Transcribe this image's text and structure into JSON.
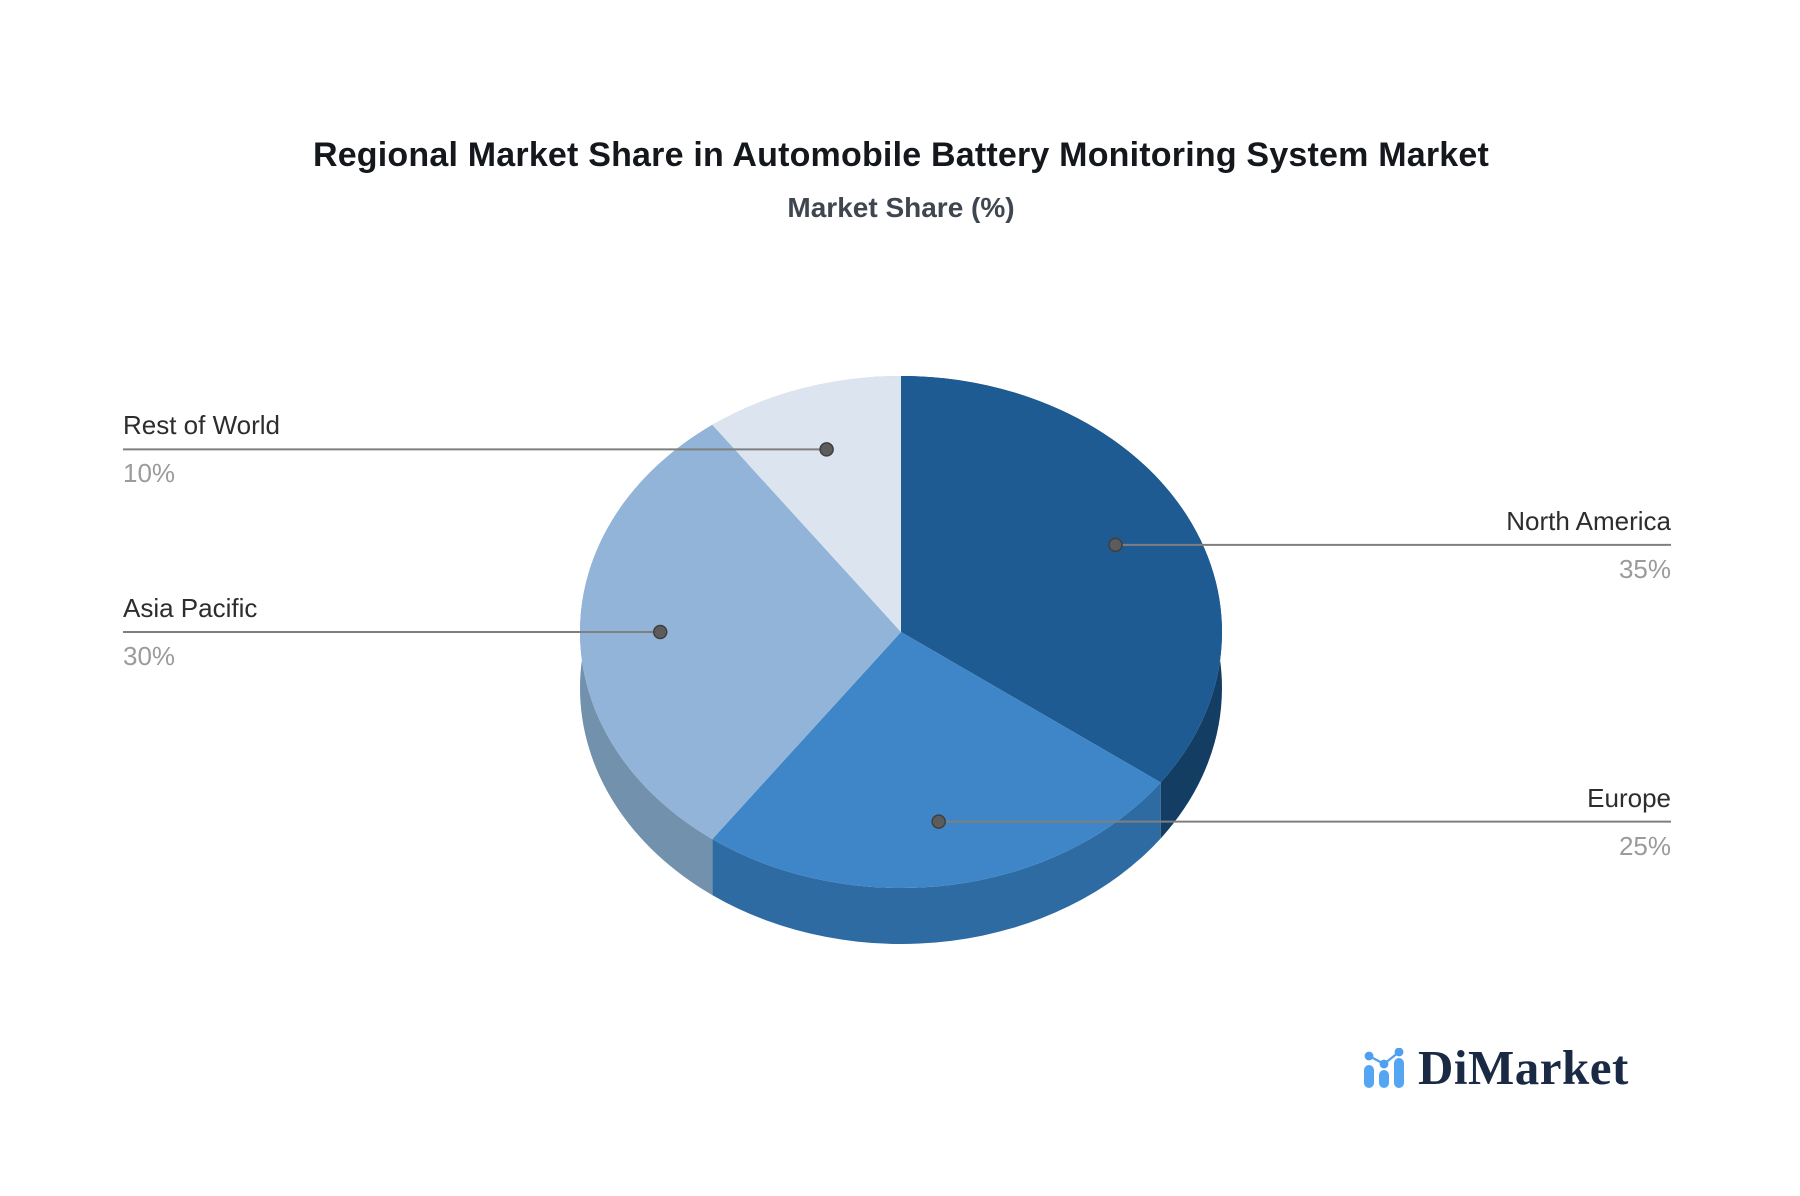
{
  "title": "Regional Market Share in Automobile Battery Monitoring System Market",
  "subtitle": "Market Share (%)",
  "watermark": {
    "brand": "DiMarket",
    "icon": "bar-line-chart-icon",
    "icon_color": "#55A6F2",
    "icon_accent_color": "#4DA0F0",
    "text_color": "#1A2A44"
  },
  "chart_data": {
    "type": "pie",
    "title": "Regional Market Share in Automobile Battery Monitoring System Market",
    "subtitle": "Market Share (%)",
    "unit": "%",
    "effect": "3d",
    "start_angle": "12-oclock-clockwise",
    "legend_position": "none",
    "leader_line_color": "#7f7f7f",
    "leader_dot_color": "#5c5c5c",
    "label_color": "#2d2d2d",
    "value_color": "#9b9b9b",
    "slices": [
      {
        "label": "North America",
        "value": 35,
        "value_text": "35%",
        "color": "#1E5B93",
        "side_color": "#143D64",
        "label_side": "right"
      },
      {
        "label": "Europe",
        "value": 25,
        "value_text": "25%",
        "color": "#3E86C7",
        "side_color": "#2E6BA2",
        "label_side": "right"
      },
      {
        "label": "Asia Pacific",
        "value": 30,
        "value_text": "30%",
        "color": "#92B4D8",
        "side_color": "#7291AD",
        "label_side": "left"
      },
      {
        "label": "Rest of World",
        "value": 10,
        "value_text": "10%",
        "color": "#DCE4EF",
        "side_color": "#B9C6D6",
        "label_side": "left"
      }
    ]
  }
}
